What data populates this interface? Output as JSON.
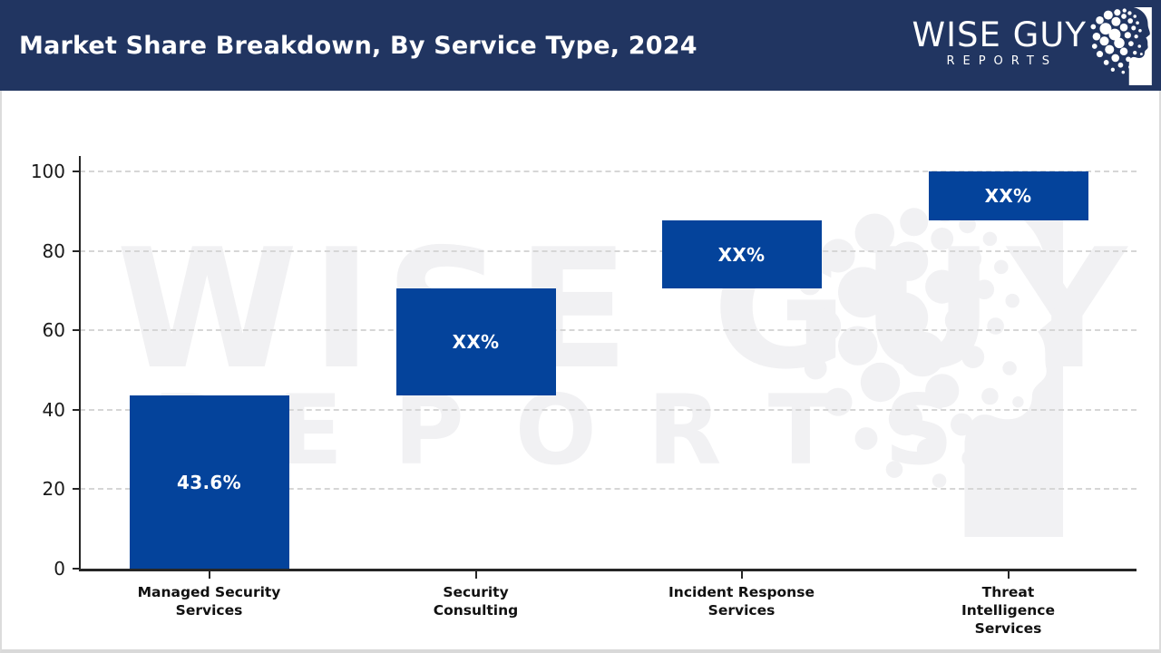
{
  "header": {
    "title": "Market Share Breakdown, By Service Type, 2024",
    "logo": {
      "name": "WISE GUY",
      "sub": "REPORTS"
    }
  },
  "watermark": {
    "name": "WISE GUY",
    "sub": "REPORTS"
  },
  "chart_data": {
    "type": "bar",
    "subtype": "waterfall",
    "title": "Market Share Breakdown, By Service Type, 2024",
    "categories": [
      [
        "Managed Security",
        "Services"
      ],
      [
        "Security",
        "Consulting"
      ],
      [
        "Incident Response",
        "Services"
      ],
      [
        "Threat",
        "Intelligence",
        "Services"
      ]
    ],
    "segments": [
      {
        "label": "43.6%",
        "start": 0,
        "end": 43.6
      },
      {
        "label": "XX%",
        "start": 43.6,
        "end": 70.6
      },
      {
        "label": "XX%",
        "start": 70.6,
        "end": 87.6
      },
      {
        "label": "XX%",
        "start": 87.6,
        "end": 100
      }
    ],
    "yticks": [
      0,
      20,
      40,
      60,
      80,
      100
    ],
    "ylim": [
      0,
      100
    ],
    "xlabel": "",
    "ylabel": "",
    "grid": "dashed-horizontal",
    "legend": "none",
    "colors": {
      "bar": "#04439b",
      "bar_label": "#ffffff",
      "header_bg": "#213561",
      "axis": "#262626",
      "tick_label": "#1a1a1a",
      "gridline": "#d6d6d6",
      "watermark": "#f1f1f3"
    }
  }
}
